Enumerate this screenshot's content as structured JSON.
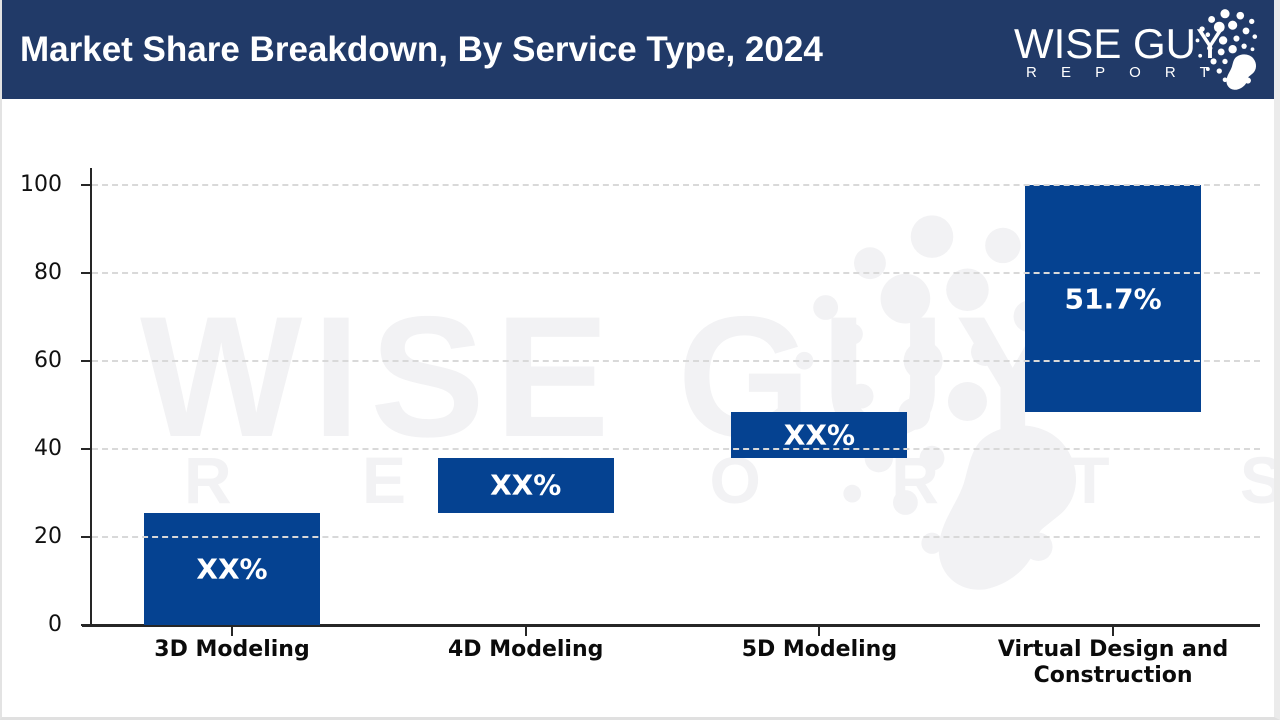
{
  "header": {
    "title": "Market Share Breakdown, By Service Type, 2024",
    "logo": {
      "line1": "WISE GUY",
      "line2": "R E P O R T S"
    }
  },
  "watermark": {
    "line1": "WISE GUY",
    "line2": "R E P O R T S"
  },
  "colors": {
    "header_bg": "#213a68",
    "bar": "#054291",
    "grid": "#d9d9d9",
    "axis": "#262626",
    "watermark": "#f2f2f4",
    "bar_label": "#ffffff"
  },
  "chart_data": {
    "type": "bar",
    "subtype": "waterfall",
    "title": "Market Share Breakdown, By Service Type, 2024",
    "xlabel": "",
    "ylabel": "",
    "categories": [
      "3D Modeling",
      "4D Modeling",
      "5D Modeling",
      "Virtual Design and Construction"
    ],
    "segments": [
      {
        "category": "3D Modeling",
        "start": 0,
        "end": 25.5,
        "label": "XX%"
      },
      {
        "category": "4D Modeling",
        "start": 25.5,
        "end": 38,
        "label": "XX%"
      },
      {
        "category": "5D Modeling",
        "start": 38,
        "end": 48.3,
        "label": "XX%"
      },
      {
        "category": "Virtual Design and Construction",
        "start": 48.3,
        "end": 100,
        "label": "51.7%",
        "value": 51.7
      }
    ],
    "yticks": [
      0,
      20,
      40,
      60,
      80,
      100
    ],
    "ylim": [
      0,
      105
    ],
    "grid": "horizontal-dashed",
    "legend": "none"
  }
}
